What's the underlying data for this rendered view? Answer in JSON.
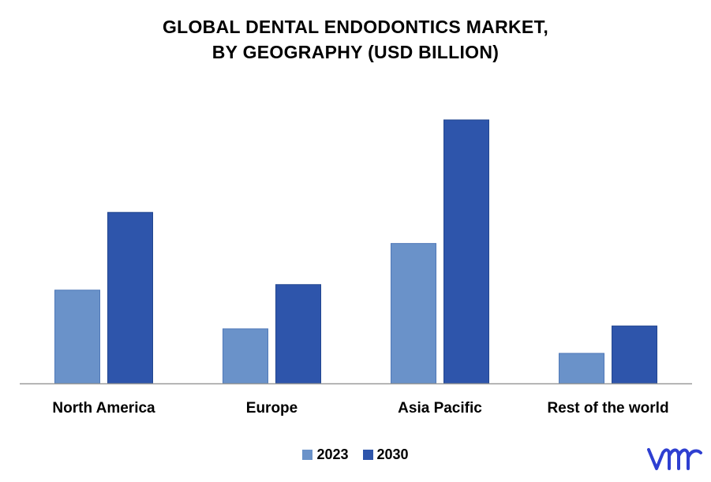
{
  "title_line1": "GLOBAL DENTAL ENDODONTICS MARKET,",
  "title_line2": "BY GEOGRAPHY (USD BILLION)",
  "legend": [
    {
      "label": "2023",
      "color": "#6A92C9"
    },
    {
      "label": "2030",
      "color": "#2E55AB"
    }
  ],
  "logo": {
    "text": "vmr",
    "icon": "vmr-logo",
    "color": "#2E3FD1"
  },
  "chart_data": {
    "type": "bar",
    "title": "GLOBAL DENTAL ENDODONTICS MARKET, BY GEOGRAPHY (USD BILLION)",
    "categories": [
      "North America",
      "Europe",
      "Asia Pacific",
      "Rest of the world"
    ],
    "series": [
      {
        "name": "2023",
        "color": "#6A92C9",
        "values": [
          0.354,
          0.207,
          0.531,
          0.114
        ]
      },
      {
        "name": "2030",
        "color": "#2E55AB",
        "values": [
          0.649,
          0.375,
          1.0,
          0.218
        ]
      }
    ],
    "ylim": [
      0,
      1.0
    ],
    "grid": false,
    "legend": "bottom",
    "y_axis_visible": false
  }
}
